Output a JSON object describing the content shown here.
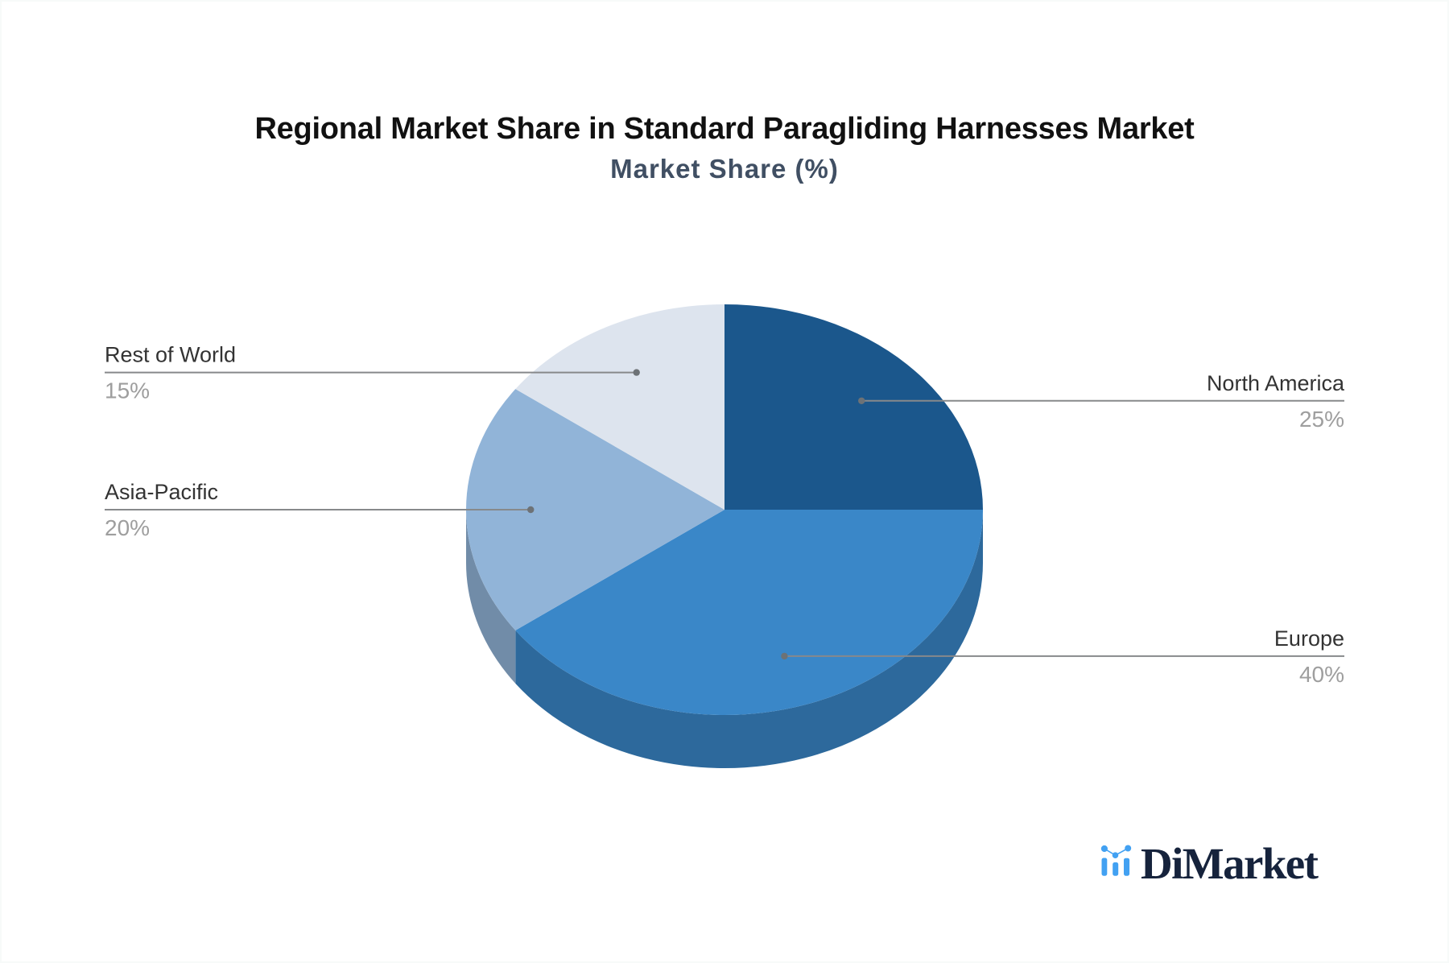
{
  "chart_data": {
    "type": "pie",
    "style": "3d",
    "title": "Regional Market Share in Standard Paragliding Harnesses Market",
    "subtitle": "Market Share (%)",
    "unit": "%",
    "legend": "none",
    "series": [
      {
        "name": "North America",
        "value": 25,
        "label": "25%",
        "color": "#1b578c"
      },
      {
        "name": "Europe",
        "value": 40,
        "label": "40%",
        "color": "#3a87c8"
      },
      {
        "name": "Asia-Pacific",
        "value": 20,
        "label": "20%",
        "color": "#91b4d8"
      },
      {
        "name": "Rest of World",
        "value": 15,
        "label": "15%",
        "color": "#dde4ee"
      }
    ]
  },
  "branding": {
    "logo_text": "DiMarket",
    "logo_text_color": "#16233c",
    "logo_icon_color": "#42a1f2"
  },
  "style": {
    "leader_line_color": "#87898b",
    "leader_dot_color": "#6d7276",
    "name_color": "#333333",
    "pct_color": "#9e9e9e",
    "background": "#ffffff"
  }
}
